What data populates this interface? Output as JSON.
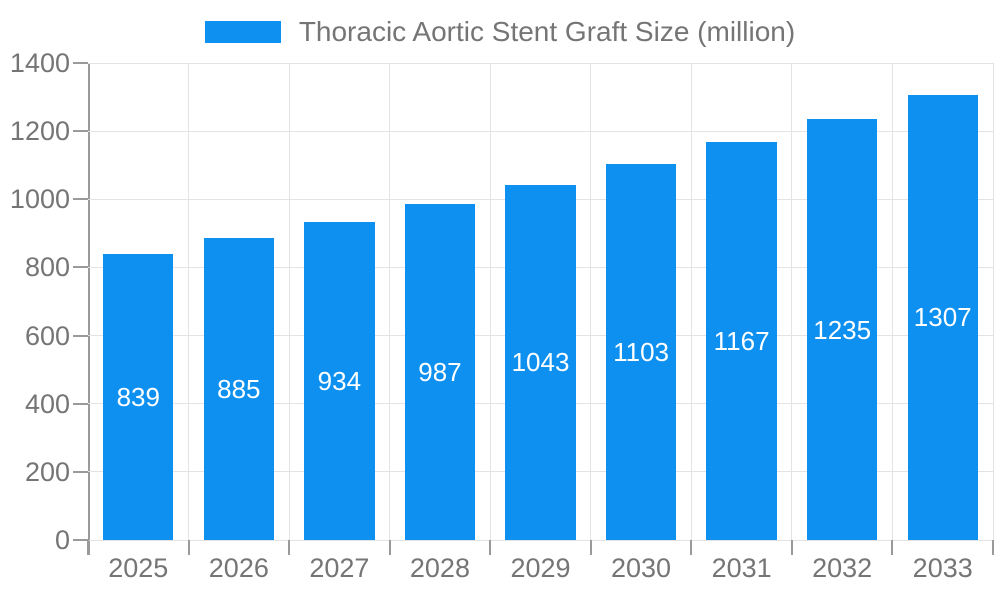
{
  "chart_data": {
    "type": "bar",
    "title": "Thoracic Aortic Stent Graft Size (million)",
    "categories": [
      "2025",
      "2026",
      "2027",
      "2028",
      "2029",
      "2030",
      "2031",
      "2032",
      "2033"
    ],
    "values": [
      839,
      885,
      934,
      987,
      1043,
      1103,
      1167,
      1235,
      1307
    ],
    "xlabel": "",
    "ylabel": "",
    "ylim": [
      0,
      1400
    ],
    "ytick_step": 200,
    "ytick_labels": [
      "0",
      "200",
      "400",
      "600",
      "800",
      "1000",
      "1200",
      "1400"
    ],
    "grid": true,
    "legend_position": "top-center",
    "bar_width_fraction": 0.7,
    "colors": {
      "bar": "#0e90f0",
      "bar_label": "#ffffff",
      "axis_text": "#757575",
      "grid_line": "#e3e3e3",
      "axis_line": "#9a9a9a",
      "background": "#ffffff"
    }
  }
}
